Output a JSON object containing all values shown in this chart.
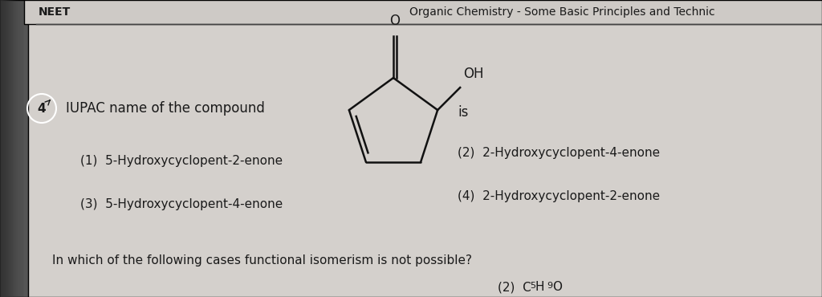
{
  "background_color": "#c8c8c8",
  "header_text": "Organic Chemistry - Some Basic Principles and Technic",
  "header_left": "NEET",
  "question_text": "IUPAC name of the compound",
  "question_suffix": "is",
  "option1": "(1)  5-Hydroxycyclopent-2-enone",
  "option2": "(2)  2-Hydroxycyclopent-4-enone",
  "option3": "(3)  5-Hydroxycyclopent-4-enone",
  "option4": "(4)  2-Hydroxycyclopent-2-enone",
  "next_question": "In which of the following cases functional isomerism is not possible?",
  "next_q_partial": "(2)  C",
  "text_color": "#1a1a1a",
  "header_line_color": "#444444",
  "font_size_header": 10,
  "font_size_question": 12,
  "font_size_options": 11,
  "font_size_next": 11,
  "shadow_left_color": "#888888"
}
